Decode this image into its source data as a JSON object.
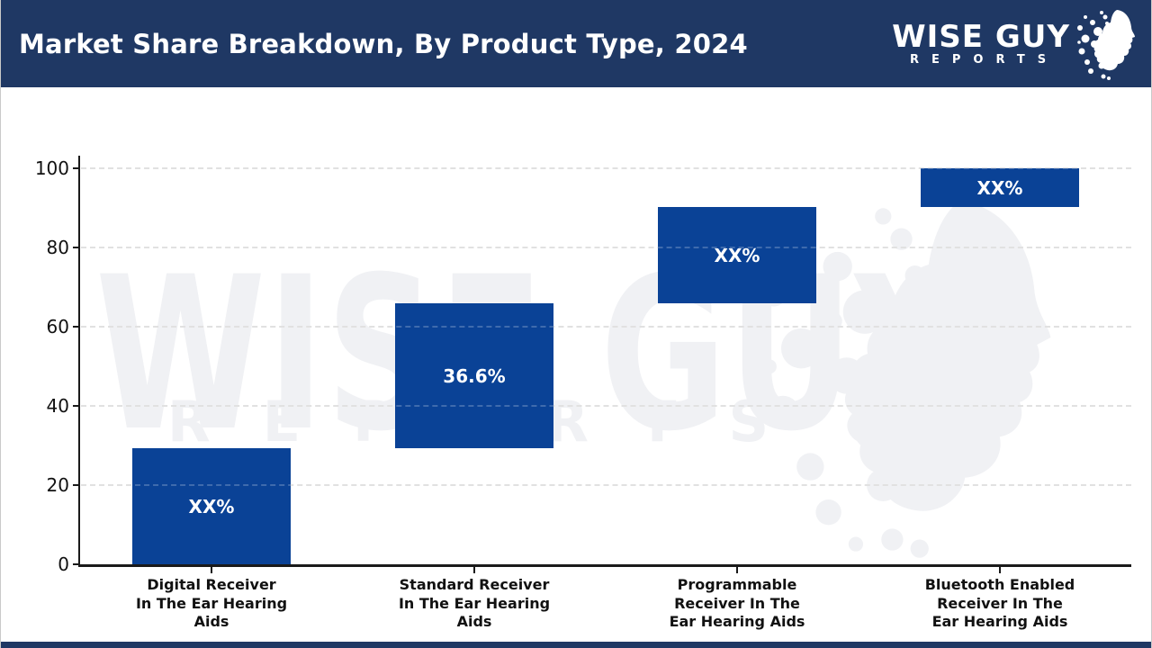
{
  "header": {
    "title": "Market Share Breakdown, By Product Type, 2024",
    "bg_color": "#1f3864",
    "logo": {
      "line1": "WISE GUY",
      "line2": "REPORTS"
    }
  },
  "watermark": {
    "line1": "WISE GUY",
    "line2": "REPORTS"
  },
  "chart_data": {
    "type": "bar",
    "variant": "floating-waterfall",
    "title": "Market Share Breakdown, By Product Type, 2024",
    "categories": [
      [
        "Digital Receiver",
        "In The Ear Hearing",
        "Aids"
      ],
      [
        "Standard Receiver",
        "In The Ear Hearing",
        "Aids"
      ],
      [
        "Programmable",
        "Receiver In The",
        "Ear Hearing Aids"
      ],
      [
        "Bluetooth Enabled",
        "Receiver In The",
        "Ear Hearing Aids"
      ]
    ],
    "bars": [
      {
        "from": 0,
        "to": 29.3,
        "label": "XX%"
      },
      {
        "from": 29.3,
        "to": 65.9,
        "label": "36.6%"
      },
      {
        "from": 65.9,
        "to": 90.2,
        "label": "XX%"
      },
      {
        "from": 90.2,
        "to": 100,
        "label": "XX%"
      }
    ],
    "xlabel": "",
    "ylabel": "",
    "ylim": [
      0,
      100
    ],
    "yticks": [
      0,
      20,
      40,
      60,
      80,
      100
    ],
    "grid": "dashed-horizontal",
    "legend": "none",
    "colors": {
      "bar": "#0a4296",
      "bar_label": "#ffffff",
      "grid": "#d9d9d9",
      "axis": "#1a1a1a",
      "header_bg": "#1f3864",
      "watermark": "#f0f1f4"
    }
  }
}
